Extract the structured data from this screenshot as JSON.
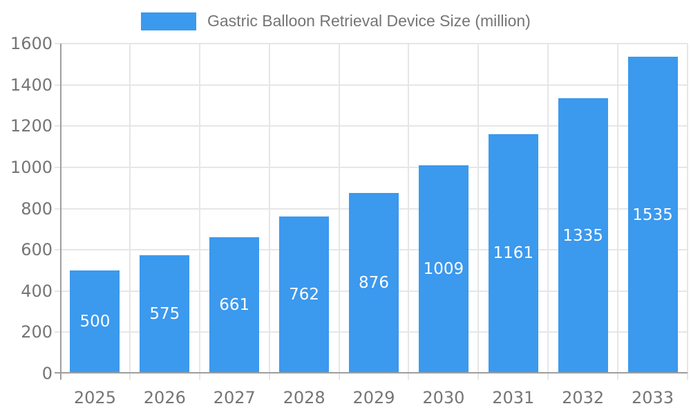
{
  "chart_data": {
    "type": "bar",
    "title": "Gastric Balloon Retrieval Device Size (million)",
    "categories": [
      "2025",
      "2026",
      "2027",
      "2028",
      "2029",
      "2030",
      "2031",
      "2032",
      "2033"
    ],
    "values": [
      500,
      575,
      661,
      762,
      876,
      1009,
      1161,
      1335,
      1535
    ],
    "xlabel": "",
    "ylabel": "",
    "ylim": [
      0,
      1600
    ],
    "ytick_step": 200,
    "yticks": [
      0,
      200,
      400,
      600,
      800,
      1000,
      1200,
      1400,
      1600
    ],
    "grid": true,
    "legend_position": "top",
    "value_label_position": "inside-center",
    "colors": {
      "bar": "#3B99EE",
      "axis_text": "#757575",
      "legend_text": "#757575",
      "grid_line": "#E6E6E6",
      "axis_line": "#9E9E9E",
      "value_label_text": "#FFFFFF",
      "background": "#FFFFFF"
    }
  }
}
